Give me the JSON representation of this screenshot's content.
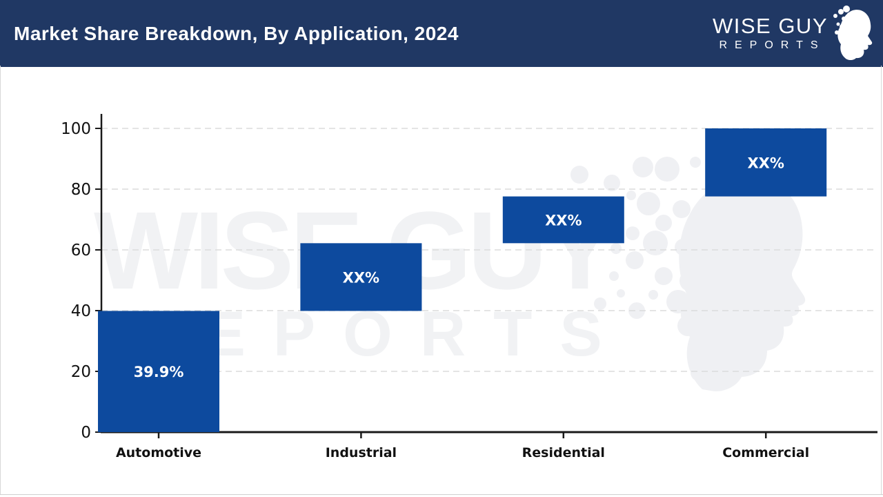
{
  "header": {
    "title": "Market Share Breakdown, By Application, 2024",
    "bg_color": "#203864",
    "brand": {
      "line1": "WISE GUY",
      "line2": "REPORTS"
    }
  },
  "watermark": {
    "line1": "WISE GUY",
    "line2": "REPORTS"
  },
  "chart_data": {
    "type": "bar",
    "subtype": "waterfall",
    "title": "Market Share Breakdown, By Application, 2024",
    "categories": [
      "Automotive",
      "Industrial",
      "Residential",
      "Commercial"
    ],
    "series": [
      {
        "name": "Market share (%)",
        "ranges": [
          [
            0,
            39.9
          ],
          [
            39.9,
            62.2
          ],
          [
            62.2,
            77.6
          ],
          [
            77.6,
            100
          ]
        ],
        "increments": [
          39.9,
          22.3,
          15.4,
          22.4
        ]
      }
    ],
    "bar_labels": [
      "39.9%",
      "XX%",
      "XX%",
      "XX%"
    ],
    "xlabel": "",
    "ylabel": "",
    "ylim": [
      0,
      100
    ],
    "yticks": [
      0,
      20,
      40,
      60,
      80,
      100
    ],
    "grid": "horizontal-dashed",
    "legend": "none",
    "bar_color": "#0d4a9e",
    "label_color": "#ffffff",
    "gridline_color": "#dcdcdc",
    "axis_color": "#1a1a1a"
  }
}
